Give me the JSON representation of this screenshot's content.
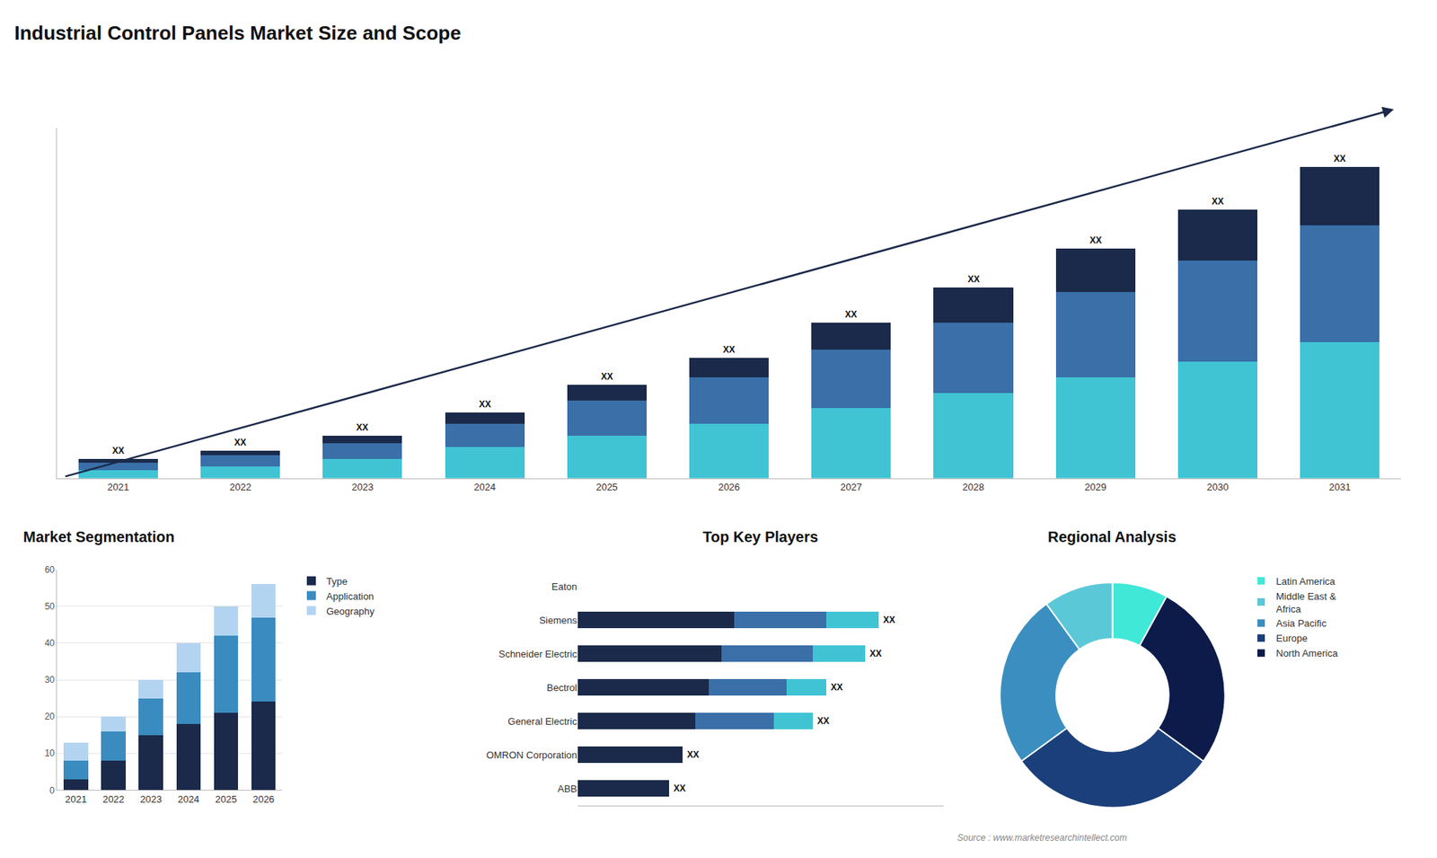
{
  "title": "Industrial Control Panels Market Size and Scope",
  "annotations": [
    "Source : www.marketresearchintellect.com"
  ],
  "chart_data": [
    {
      "type": "bar",
      "stacked": true,
      "categories": [
        "2021",
        "2022",
        "2023",
        "2024",
        "2025",
        "2026",
        "2027",
        "2028",
        "2029",
        "2030",
        "2031"
      ],
      "series": [
        {
          "color": "#40c4d4",
          "values": [
            2,
            3,
            5,
            8,
            11,
            14,
            18,
            22,
            26,
            30,
            35
          ]
        },
        {
          "color": "#3a6fa8",
          "values": [
            2,
            3,
            4,
            6,
            9,
            12,
            15,
            18,
            22,
            26,
            30
          ]
        },
        {
          "color": "#1b2a4a",
          "values": [
            1,
            1,
            2,
            3,
            4,
            5,
            7,
            9,
            11,
            13,
            15
          ]
        }
      ],
      "ylim": [
        0,
        90
      ],
      "tick_labels": "x",
      "grid": false,
      "annotations": [
        {
          "text": "XX",
          "x": "2021"
        },
        {
          "text": "XX",
          "x": "2022"
        },
        {
          "text": "XX",
          "x": "2023"
        },
        {
          "text": "XX",
          "x": "2024"
        },
        {
          "text": "XX",
          "x": "2025"
        },
        {
          "text": "XX",
          "x": "2026"
        },
        {
          "text": "XX",
          "x": "2027"
        },
        {
          "text": "XX",
          "x": "2028"
        },
        {
          "text": "XX",
          "x": "2029"
        },
        {
          "text": "XX",
          "x": "2030"
        },
        {
          "text": "XX",
          "x": "2031"
        }
      ]
    },
    {
      "type": "bar",
      "title": "Market Segmentation",
      "stacked": true,
      "categories": [
        "2021",
        "2022",
        "2023",
        "2024",
        "2025",
        "2026"
      ],
      "series": [
        {
          "name": "Type",
          "color": "#1b2a4a",
          "values": [
            3,
            8,
            15,
            18,
            21,
            24
          ]
        },
        {
          "name": "Application",
          "color": "#3a8bbf",
          "values": [
            5,
            8,
            10,
            14,
            21,
            23
          ]
        },
        {
          "name": "Geography",
          "color": "#b3d4f0",
          "values": [
            5,
            4,
            5,
            8,
            8,
            9
          ]
        }
      ],
      "ylim": [
        0,
        60
      ],
      "yticks": [
        0,
        10,
        20,
        30,
        40,
        50,
        60
      ],
      "grid": true,
      "legend": "right"
    },
    {
      "type": "bar",
      "title": "Top Key Players",
      "orientation": "horizontal",
      "stacked": true,
      "categories": [
        "Eaton",
        "Siemens",
        "Schneider Electric",
        "Bectrol",
        "General Electric",
        "OMRON Corporation",
        "ABB"
      ],
      "series": [
        {
          "color": "#1b2a4a",
          "values": [
            0,
            12,
            11,
            10,
            9,
            8,
            7
          ]
        },
        {
          "color": "#3a6fa8",
          "values": [
            0,
            7,
            7,
            6,
            6,
            0,
            0
          ]
        },
        {
          "color": "#40c4d4",
          "values": [
            0,
            4,
            4,
            3,
            3,
            0,
            0
          ]
        }
      ],
      "xlim": [
        0,
        28
      ],
      "tick_labels": "y",
      "grid": false,
      "annotations": [
        {
          "text": "XX",
          "y": "Siemens"
        },
        {
          "text": "XX",
          "y": "Schneider Electric"
        },
        {
          "text": "XX",
          "y": "Bectrol"
        },
        {
          "text": "XX",
          "y": "General Electric"
        },
        {
          "text": "XX",
          "y": "OMRON Corporation"
        },
        {
          "text": "XX",
          "y": "ABB"
        }
      ]
    },
    {
      "type": "pie",
      "title": "Regional Analysis",
      "categories": [
        "Latin America",
        "Middle East &\nAfrica",
        "Asia Pacific",
        "Europe",
        "North America"
      ],
      "values": [
        8,
        10,
        25,
        30,
        27
      ],
      "colors": [
        "#40e8d8",
        "#5bc8d8",
        "#3a8fc0",
        "#1b3f7a",
        "#0d1b4a"
      ],
      "legend": "right"
    }
  ]
}
